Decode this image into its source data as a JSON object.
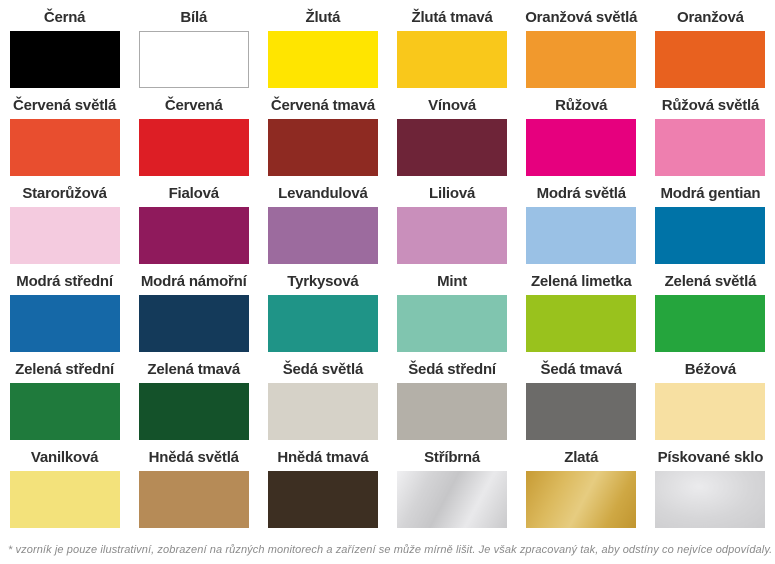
{
  "swatches": [
    {
      "label": "Černá",
      "color": "#000000"
    },
    {
      "label": "Bílá",
      "color": "#FFFFFF",
      "border": "#ABABAB"
    },
    {
      "label": "Žlutá",
      "color": "#FFE500"
    },
    {
      "label": "Žlutá tmavá",
      "color": "#F9C81B"
    },
    {
      "label": "Oranžová světlá",
      "color": "#F1992D"
    },
    {
      "label": "Oranžová",
      "color": "#E8611F"
    },
    {
      "label": "Červená světlá",
      "color": "#E84E2F"
    },
    {
      "label": "Červená",
      "color": "#DD1E25"
    },
    {
      "label": "Červená tmavá",
      "color": "#8E2A22"
    },
    {
      "label": "Vínová",
      "color": "#6E2438"
    },
    {
      "label": "Růžová",
      "color": "#E6007E"
    },
    {
      "label": "Růžová světlá",
      "color": "#EE7FAF"
    },
    {
      "label": "Starorůžová",
      "color": "#F4CBDF"
    },
    {
      "label": "Fialová",
      "color": "#8F1A5C"
    },
    {
      "label": "Levandulová",
      "color": "#9C6B9E"
    },
    {
      "label": "Liliová",
      "color": "#C98FBB"
    },
    {
      "label": "Modrá světlá",
      "color": "#9AC1E5"
    },
    {
      "label": "Modrá gentian",
      "color": "#0073A7"
    },
    {
      "label": "Modrá střední",
      "color": "#1568A7"
    },
    {
      "label": "Modrá námořní",
      "color": "#143A5A"
    },
    {
      "label": "Tyrkysová",
      "color": "#1F9487"
    },
    {
      "label": "Mint",
      "color": "#80C5AF"
    },
    {
      "label": "Zelená limetka",
      "color": "#99C21D"
    },
    {
      "label": "Zelená světlá",
      "color": "#25A53D"
    },
    {
      "label": "Zelená střední",
      "color": "#1F7A3C"
    },
    {
      "label": "Zelená tmavá",
      "color": "#14522A"
    },
    {
      "label": "Šedá světlá",
      "color": "#D6D2C8"
    },
    {
      "label": "Šedá střední",
      "color": "#B4B0A8"
    },
    {
      "label": "Šedá tmavá",
      "color": "#6C6B69"
    },
    {
      "label": "Béžová",
      "color": "#F7E0A2"
    },
    {
      "label": "Vanilková",
      "color": "#F3E27B"
    },
    {
      "label": "Hnědá světlá",
      "color": "#B68B57"
    },
    {
      "label": "Hnědá tmavá",
      "color": "#3D2F22"
    },
    {
      "label": "Stříbrná",
      "color": "#D4D4D6",
      "gradient_type": "linear",
      "gradient": [
        "#F0F0F2 0%",
        "#D4D4D6 25%",
        "#C6C6C8 45%",
        "#E9E9EB 70%",
        "#C9C9CB 100%"
      ]
    },
    {
      "label": "Zlatá",
      "color": "#CFA844",
      "gradient_type": "linear",
      "gradient": [
        "#C79B34 0%",
        "#DCBA5E 30%",
        "#E6CC80 52%",
        "#CFA844 78%",
        "#C0952F 100%"
      ]
    },
    {
      "label": "Pískované sklo",
      "color": "#D2D2D4",
      "gradient_type": "radial",
      "gradient": [
        "#EBEBED 0%",
        "#D6D6D8 55%",
        "#CBCBCD 100%"
      ]
    }
  ],
  "footer": {
    "note": "* vzorník je pouze ilustrativní, zobrazení na různých monitorech a zařízení se může mírně lišit. Je však zpracovaný tak, aby odstíny co nejvíce odpovídaly."
  }
}
